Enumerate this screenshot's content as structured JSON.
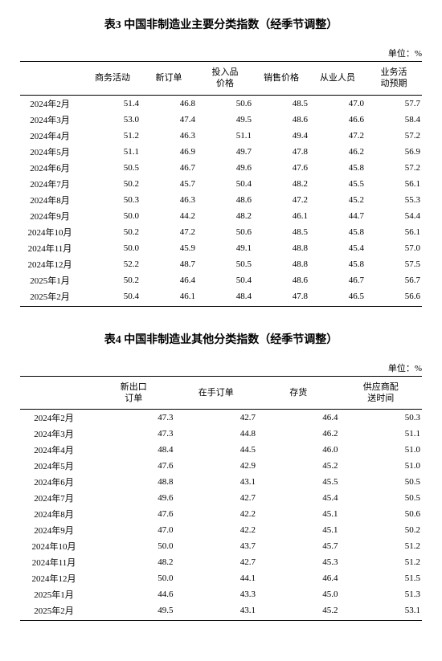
{
  "table3": {
    "title": "表3 中国非制造业主要分类指数（经季节调整）",
    "unit": "单位：%",
    "headers": [
      "",
      "商务活动",
      "新订单",
      "投入品价格",
      "销售价格",
      "从业人员",
      "业务活动预期"
    ],
    "periods": [
      "2024年2月",
      "2024年3月",
      "2024年4月",
      "2024年5月",
      "2024年6月",
      "2024年7月",
      "2024年8月",
      "2024年9月",
      "2024年10月",
      "2024年11月",
      "2024年12月",
      "2025年1月",
      "2025年2月"
    ],
    "rows": [
      [
        "51.4",
        "46.8",
        "50.6",
        "48.5",
        "47.0",
        "57.7"
      ],
      [
        "53.0",
        "47.4",
        "49.5",
        "48.6",
        "46.6",
        "58.4"
      ],
      [
        "51.2",
        "46.3",
        "51.1",
        "49.4",
        "47.2",
        "57.2"
      ],
      [
        "51.1",
        "46.9",
        "49.7",
        "47.8",
        "46.2",
        "56.9"
      ],
      [
        "50.5",
        "46.7",
        "49.6",
        "47.6",
        "45.8",
        "57.2"
      ],
      [
        "50.2",
        "45.7",
        "50.4",
        "48.2",
        "45.5",
        "56.1"
      ],
      [
        "50.3",
        "46.3",
        "48.6",
        "47.2",
        "45.2",
        "55.3"
      ],
      [
        "50.0",
        "44.2",
        "48.2",
        "46.1",
        "44.7",
        "54.4"
      ],
      [
        "50.2",
        "47.2",
        "50.6",
        "48.5",
        "45.8",
        "56.1"
      ],
      [
        "50.0",
        "45.9",
        "49.1",
        "48.8",
        "45.4",
        "57.0"
      ],
      [
        "52.2",
        "48.7",
        "50.5",
        "48.8",
        "45.8",
        "57.5"
      ],
      [
        "50.2",
        "46.4",
        "50.4",
        "48.6",
        "46.7",
        "56.7"
      ],
      [
        "50.4",
        "46.1",
        "48.4",
        "47.8",
        "46.5",
        "56.6"
      ]
    ]
  },
  "table4": {
    "title": "表4 中国非制造业其他分类指数（经季节调整）",
    "unit": "单位：%",
    "headers": [
      "",
      "新出口订单",
      "在手订单",
      "存货",
      "供应商配送时间"
    ],
    "periods": [
      "2024年2月",
      "2024年3月",
      "2024年4月",
      "2024年5月",
      "2024年6月",
      "2024年7月",
      "2024年8月",
      "2024年9月",
      "2024年10月",
      "2024年11月",
      "2024年12月",
      "2025年1月",
      "2025年2月"
    ],
    "rows": [
      [
        "47.3",
        "42.7",
        "46.4",
        "50.3"
      ],
      [
        "47.3",
        "44.8",
        "46.2",
        "51.1"
      ],
      [
        "48.4",
        "44.5",
        "46.0",
        "51.0"
      ],
      [
        "47.6",
        "42.9",
        "45.2",
        "51.0"
      ],
      [
        "48.8",
        "43.1",
        "45.5",
        "50.5"
      ],
      [
        "49.6",
        "42.7",
        "45.4",
        "50.5"
      ],
      [
        "47.6",
        "42.2",
        "45.1",
        "50.6"
      ],
      [
        "47.0",
        "42.2",
        "45.1",
        "50.2"
      ],
      [
        "50.0",
        "43.7",
        "45.7",
        "51.2"
      ],
      [
        "48.2",
        "42.7",
        "45.3",
        "51.2"
      ],
      [
        "50.0",
        "44.1",
        "46.4",
        "51.5"
      ],
      [
        "44.6",
        "43.3",
        "45.0",
        "51.3"
      ],
      [
        "49.5",
        "43.1",
        "45.2",
        "53.1"
      ]
    ]
  }
}
